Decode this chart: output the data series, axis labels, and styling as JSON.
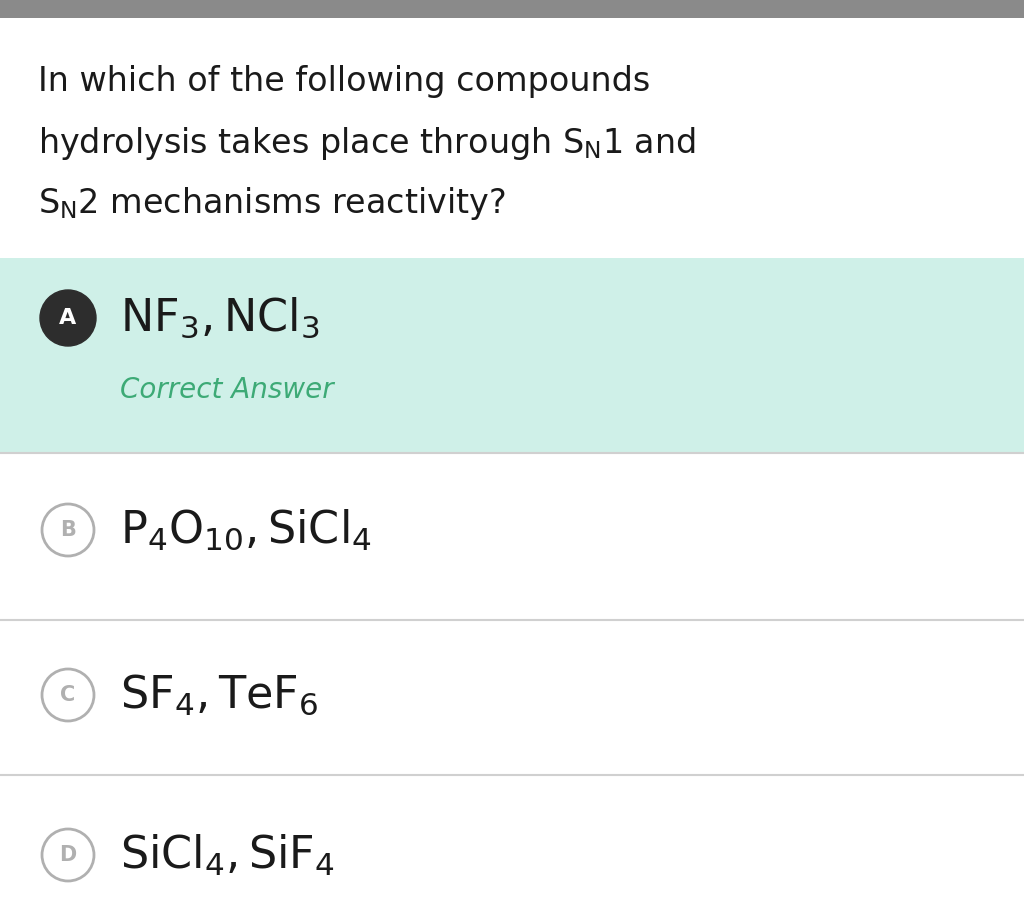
{
  "bg_color": "#ffffff",
  "top_bar_color": "#8a8a8a",
  "option_a_bg": "#cff0e8",
  "option_a_circle_color": "#2d2d2d",
  "option_a_letter": "A",
  "option_a_correct": "Correct Answer",
  "option_a_correct_color": "#3daa76",
  "option_b_circle_color": "#b0b0b0",
  "option_b_letter": "B",
  "option_c_circle_color": "#b0b0b0",
  "option_c_letter": "C",
  "option_d_circle_color": "#b0b0b0",
  "option_d_letter": "D",
  "text_color": "#1a1a1a",
  "divider_color": "#d0d0d0",
  "fig_width": 10.24,
  "fig_height": 9.23
}
